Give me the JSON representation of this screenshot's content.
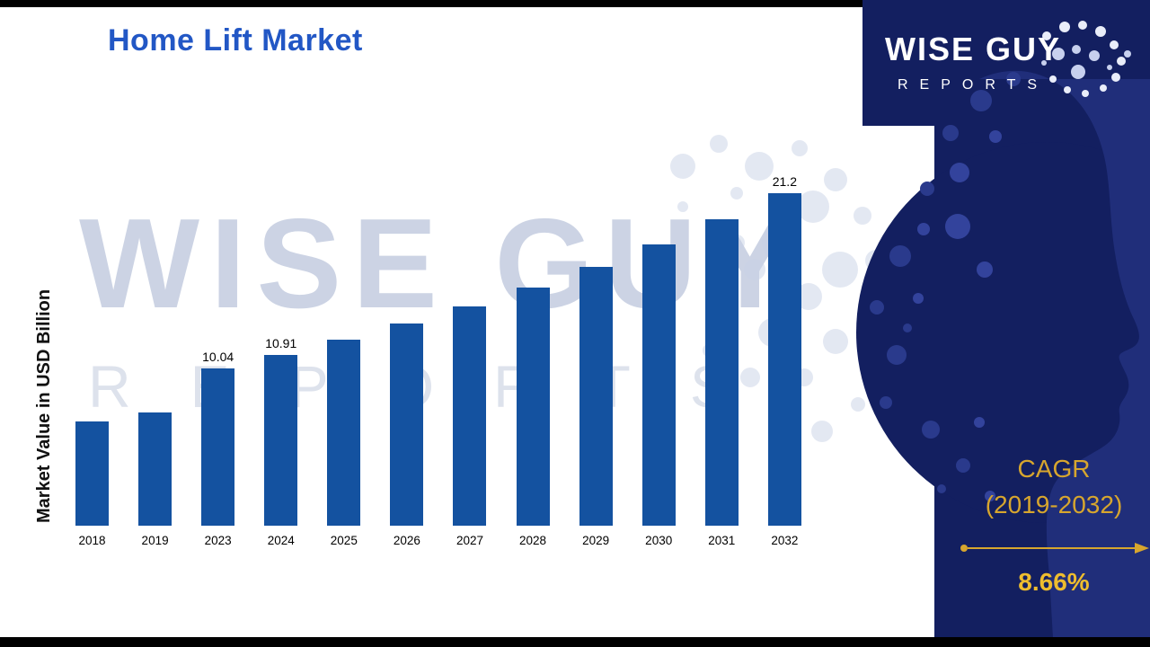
{
  "title": "Home Lift Market",
  "y_axis_label": "Market Value in USD Billion",
  "watermark": {
    "line1": "WISE GUY",
    "line2": "REPORTS"
  },
  "logo": {
    "line1": "WISE GUY",
    "line2": "REPORTS"
  },
  "cagr": {
    "heading": "CAGR",
    "range": "(2019-2032)",
    "value": "8.66%"
  },
  "colors": {
    "bar": "#1452a0",
    "title": "#2257c5",
    "panel": "#131f60",
    "gold": "#d7a62e",
    "yellow": "#eebd2e"
  },
  "chart_data": {
    "type": "bar",
    "title": "Home Lift Market",
    "xlabel": "",
    "ylabel": "Market Value in USD Billion",
    "unit": "USD Billion",
    "categories": [
      "2018",
      "2019",
      "2023",
      "2024",
      "2025",
      "2026",
      "2027",
      "2028",
      "2029",
      "2030",
      "2031",
      "2032"
    ],
    "values": [
      6.63,
      7.2,
      10.04,
      10.91,
      11.85,
      12.88,
      14.0,
      15.21,
      16.53,
      17.96,
      19.51,
      21.2
    ],
    "bar_labels": [
      "",
      "",
      "10.04",
      "10.91",
      "",
      "",
      "",
      "",
      "",
      "",
      "",
      "21.2"
    ],
    "ylim": [
      0,
      21.2
    ],
    "grid": false,
    "legend": false,
    "cagr_percent": "8.66%",
    "cagr_period": "(2019-2032)"
  }
}
